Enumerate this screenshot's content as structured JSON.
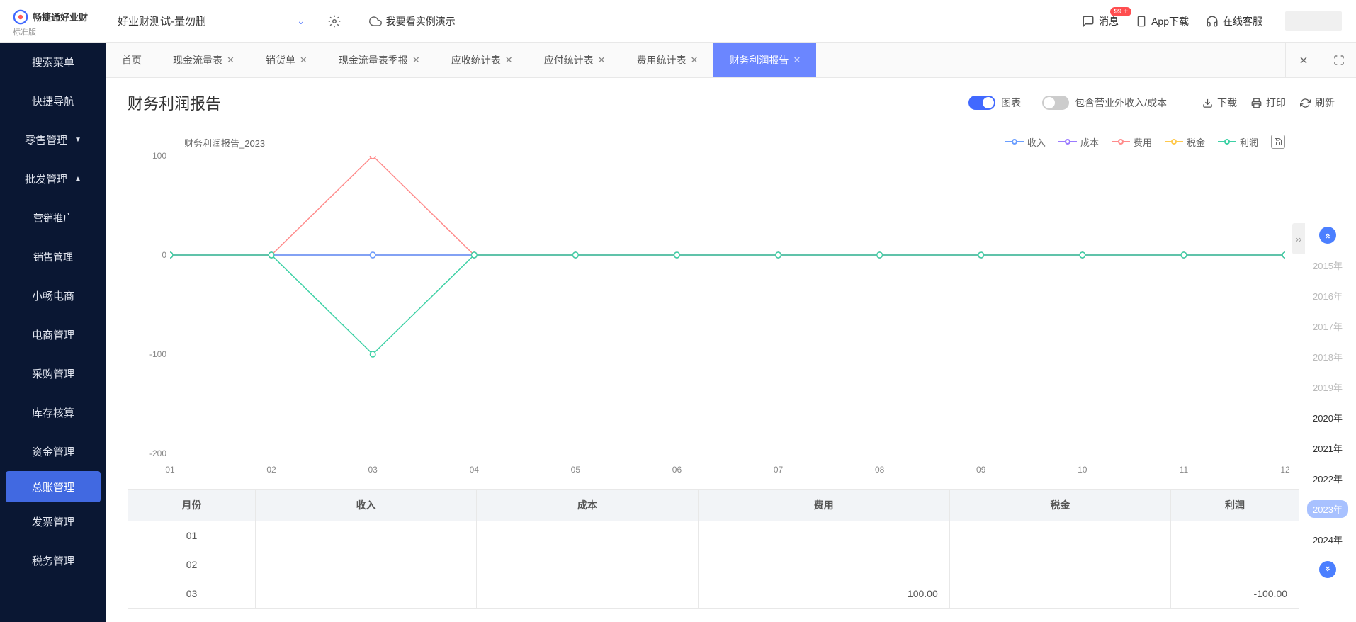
{
  "header": {
    "logo_text": "畅捷通好业财",
    "logo_sub": "标准版",
    "tenant": "好业财测试-量勿删",
    "demo_link": "我要看实例演示",
    "messages": "消息",
    "messages_badge": "99 +",
    "app_download": "App下载",
    "online_service": "在线客服"
  },
  "sidebar": {
    "items": [
      {
        "label": "搜索菜单",
        "caret": ""
      },
      {
        "label": "快捷导航",
        "caret": ""
      },
      {
        "label": "零售管理",
        "caret": "▼"
      },
      {
        "label": "批发管理",
        "caret": "▲"
      },
      {
        "label": "营销推广",
        "indent": true
      },
      {
        "label": "销售管理",
        "indent": true
      },
      {
        "label": "小畅电商",
        "caret": ""
      },
      {
        "label": "电商管理",
        "caret": ""
      },
      {
        "label": "采购管理",
        "caret": ""
      },
      {
        "label": "库存核算",
        "caret": ""
      },
      {
        "label": "资金管理",
        "caret": ""
      },
      {
        "label": "总账管理",
        "active": true
      },
      {
        "label": "发票管理",
        "caret": ""
      },
      {
        "label": "税务管理",
        "caret": ""
      }
    ]
  },
  "tabs": [
    {
      "label": "首页",
      "closable": false
    },
    {
      "label": "现金流量表",
      "closable": true
    },
    {
      "label": "销货单",
      "closable": true
    },
    {
      "label": "现金流量表季报",
      "closable": true
    },
    {
      "label": "应收统计表",
      "closable": true
    },
    {
      "label": "应付统计表",
      "closable": true
    },
    {
      "label": "费用统计表",
      "closable": true
    },
    {
      "label": "财务利润报告",
      "closable": true,
      "active": true
    }
  ],
  "page": {
    "title": "财务利润报告",
    "toggle_chart": "图表",
    "toggle_include": "包含营业外收入/成本",
    "download": "下载",
    "print": "打印",
    "refresh": "刷新"
  },
  "chart": {
    "title": "财务利润报告_2023",
    "type": "line",
    "legend": [
      {
        "key": "income",
        "label": "收入",
        "color": "#6b9eff"
      },
      {
        "key": "cost",
        "label": "成本",
        "color": "#9b7bff"
      },
      {
        "key": "expense",
        "label": "费用",
        "color": "#ff8b8b"
      },
      {
        "key": "tax",
        "label": "税金",
        "color": "#ffc94d"
      },
      {
        "key": "profit",
        "label": "利润",
        "color": "#3dd1a5"
      }
    ],
    "x_categories": [
      "01",
      "02",
      "03",
      "04",
      "05",
      "06",
      "07",
      "08",
      "09",
      "10",
      "11",
      "12"
    ],
    "ylim": [
      -200,
      100
    ],
    "ytick_step": 100,
    "y_ticks": [
      100,
      0,
      -100,
      -200
    ],
    "series": {
      "income": [
        0,
        0,
        0,
        0,
        0,
        0,
        0,
        0,
        0,
        0,
        0,
        0
      ],
      "cost": [
        0,
        0,
        0,
        0,
        0,
        0,
        0,
        0,
        0,
        0,
        0,
        0
      ],
      "expense": [
        0,
        0,
        100,
        0,
        0,
        0,
        0,
        0,
        0,
        0,
        0,
        0
      ],
      "tax": [
        0,
        0,
        0,
        0,
        0,
        0,
        0,
        0,
        0,
        0,
        0,
        0
      ],
      "profit": [
        0,
        0,
        -100,
        0,
        0,
        0,
        0,
        0,
        0,
        0,
        0,
        0
      ]
    },
    "background_color": "#ffffff",
    "axis_color": "#cccccc",
    "label_color": "#888888",
    "label_fontsize": 12,
    "marker_style": "hollow_circle",
    "marker_radius": 4,
    "line_width": 1.5
  },
  "years": {
    "list": [
      "2015年",
      "2016年",
      "2017年",
      "2018年",
      "2019年",
      "2020年",
      "2021年",
      "2022年",
      "2023年",
      "2024年"
    ],
    "enabled_from_index": 5,
    "active_index": 8
  },
  "table": {
    "columns": [
      "月份",
      "收入",
      "成本",
      "费用",
      "税金",
      "利润"
    ],
    "rows": [
      {
        "month": "01",
        "income": "",
        "cost": "",
        "expense": "",
        "tax": "",
        "profit": ""
      },
      {
        "month": "02",
        "income": "",
        "cost": "",
        "expense": "",
        "tax": "",
        "profit": ""
      },
      {
        "month": "03",
        "income": "",
        "cost": "",
        "expense": "100.00",
        "tax": "",
        "profit": "-100.00"
      }
    ]
  }
}
